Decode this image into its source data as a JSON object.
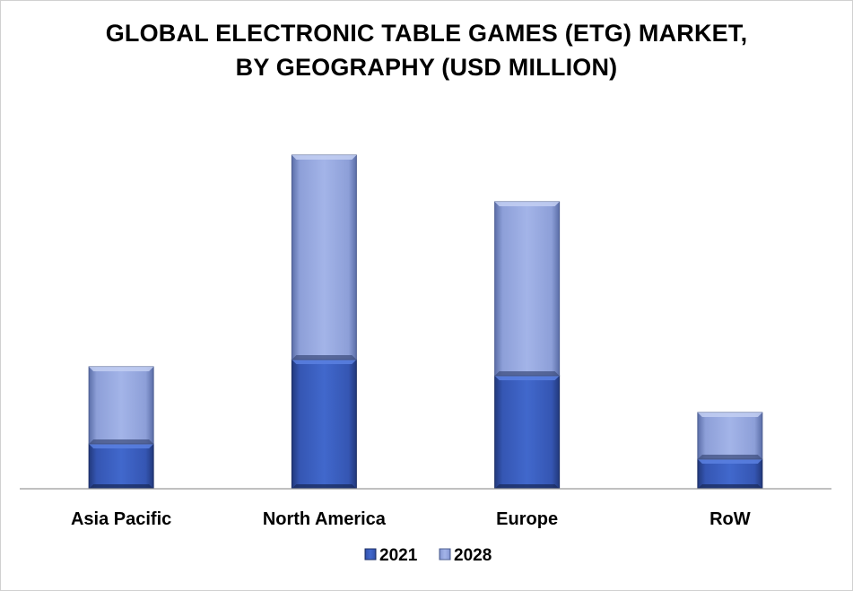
{
  "chart_data": {
    "type": "bar",
    "stacked": true,
    "title_lines": [
      "GLOBAL ELECTRONIC TABLE GAMES (ETG) MARKET,",
      "BY GEOGRAPHY (USD MILLION)"
    ],
    "categories": [
      "Asia Pacific",
      "North America",
      "Europe",
      "RoW"
    ],
    "series": [
      {
        "name": "2021",
        "values": [
          50,
          144,
          126,
          33
        ],
        "color": "#3b5fc0"
      },
      {
        "name": "2028",
        "values": [
          86,
          228,
          194,
          52
        ],
        "color": "#94a8e2"
      }
    ],
    "ylim": [
      0,
      380
    ],
    "grid": false,
    "legend_position": "bottom"
  }
}
